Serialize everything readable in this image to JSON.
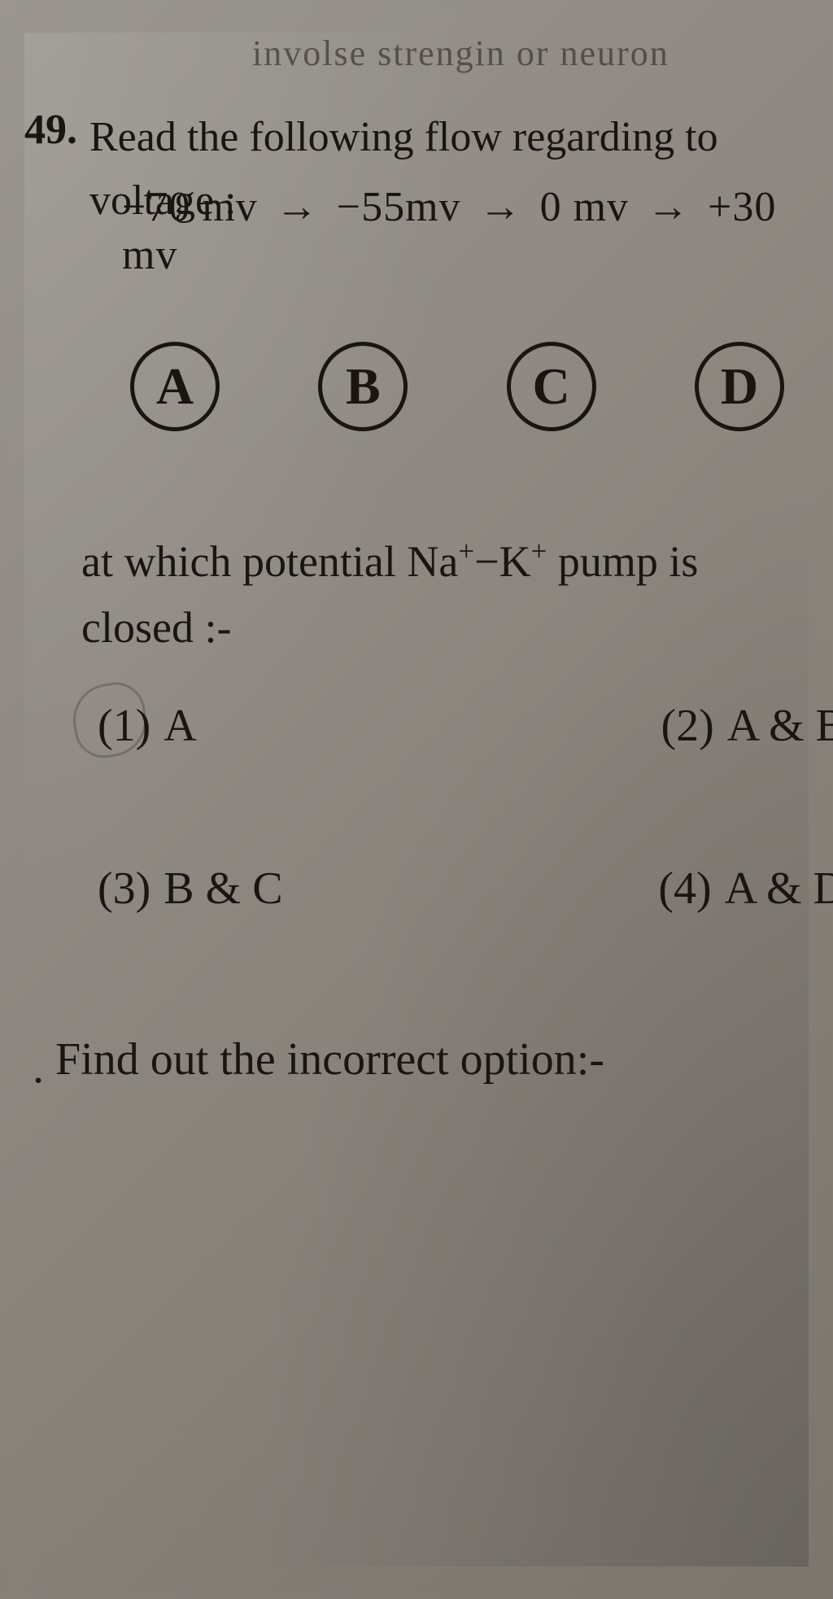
{
  "topPartial": "involse strengin or neuron",
  "questionNumber": "49.",
  "questionText": "Read the following flow regarding to voltage :",
  "voltageFlow": {
    "v1": "−70 mv",
    "v2": "−55mv",
    "v3": "0 mv",
    "v4": "+30 mv",
    "arrow": "→"
  },
  "circleOptions": {
    "a": "A",
    "b": "B",
    "c": "C",
    "d": "D"
  },
  "subQuestion": {
    "part1": "at which potential Na",
    "sup1": "+",
    "dash": "−K",
    "sup2": "+",
    "part2": " pump is closed :-"
  },
  "answers": {
    "opt1_num": "(1)",
    "opt1_text": "A",
    "opt2_num": "(2)",
    "opt2_text": "A & B",
    "opt3_num": "(3)",
    "opt3_text": "B & C",
    "opt4_num": "(4)",
    "opt4_text": "A & D"
  },
  "bullet": ".",
  "findOut": "Find out the incorrect option:-",
  "colors": {
    "text": "#1a1510",
    "bg_start": "#9a9590",
    "bg_end": "#7a756d",
    "circle_border": "#1a1510"
  },
  "typography": {
    "question_fontsize": 52,
    "option_fontsize": 64,
    "answer_fontsize": 56,
    "font_family": "Georgia, Times New Roman, serif"
  }
}
